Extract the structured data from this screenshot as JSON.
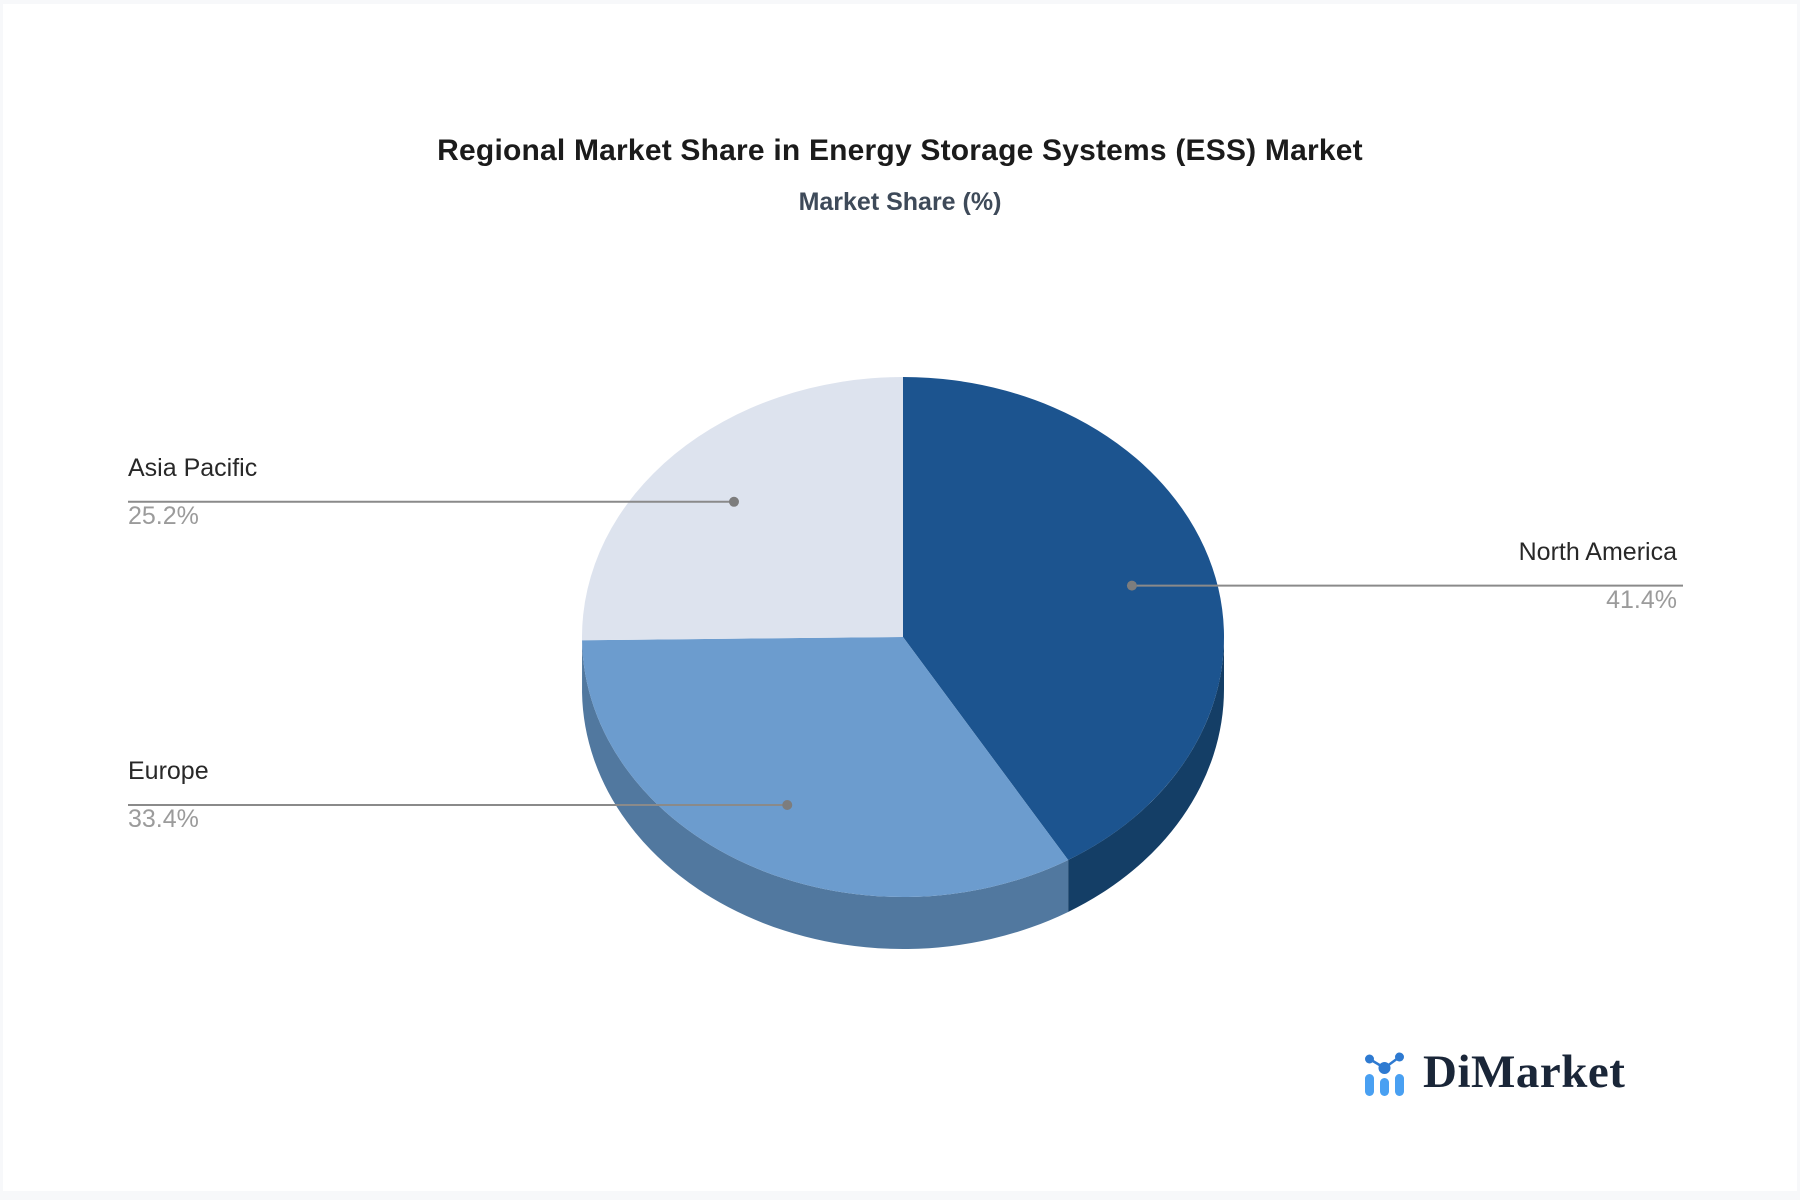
{
  "title": "Regional Market Share in Energy Storage Systems (ESS) Market",
  "subtitle": "Market Share (%)",
  "brand": {
    "name": "DiMarket"
  },
  "colors": {
    "title": "#1b1b1b",
    "subtitle": "#3e4a59",
    "label_name": "#282828",
    "label_value": "#9b9b9b",
    "leader_line": "#8a8a8a",
    "leader_dot": "#7d7d7d",
    "background": "#ffffff",
    "frame": "#f7f8fa"
  },
  "chart_data": {
    "type": "pie",
    "style": "3d",
    "title": "Regional Market Share in Energy Storage Systems (ESS) Market",
    "subtitle": "Market Share (%)",
    "unit": "%",
    "start_angle_deg": 0,
    "direction": "clockwise",
    "legend_position": "none",
    "labels_outside_with_leader_lines": true,
    "slices": [
      {
        "label": "North America",
        "value": 41.4,
        "display": "41.4%",
        "color": "#1c548f",
        "side_color": "#143e66"
      },
      {
        "label": "Europe",
        "value": 33.4,
        "display": "33.4%",
        "color": "#6c9cce",
        "side_color": "#51789f"
      },
      {
        "label": "Asia Pacific",
        "value": 25.2,
        "display": "25.2%",
        "color": "#dde3ee",
        "side_color": "#c6cfdf"
      }
    ]
  }
}
